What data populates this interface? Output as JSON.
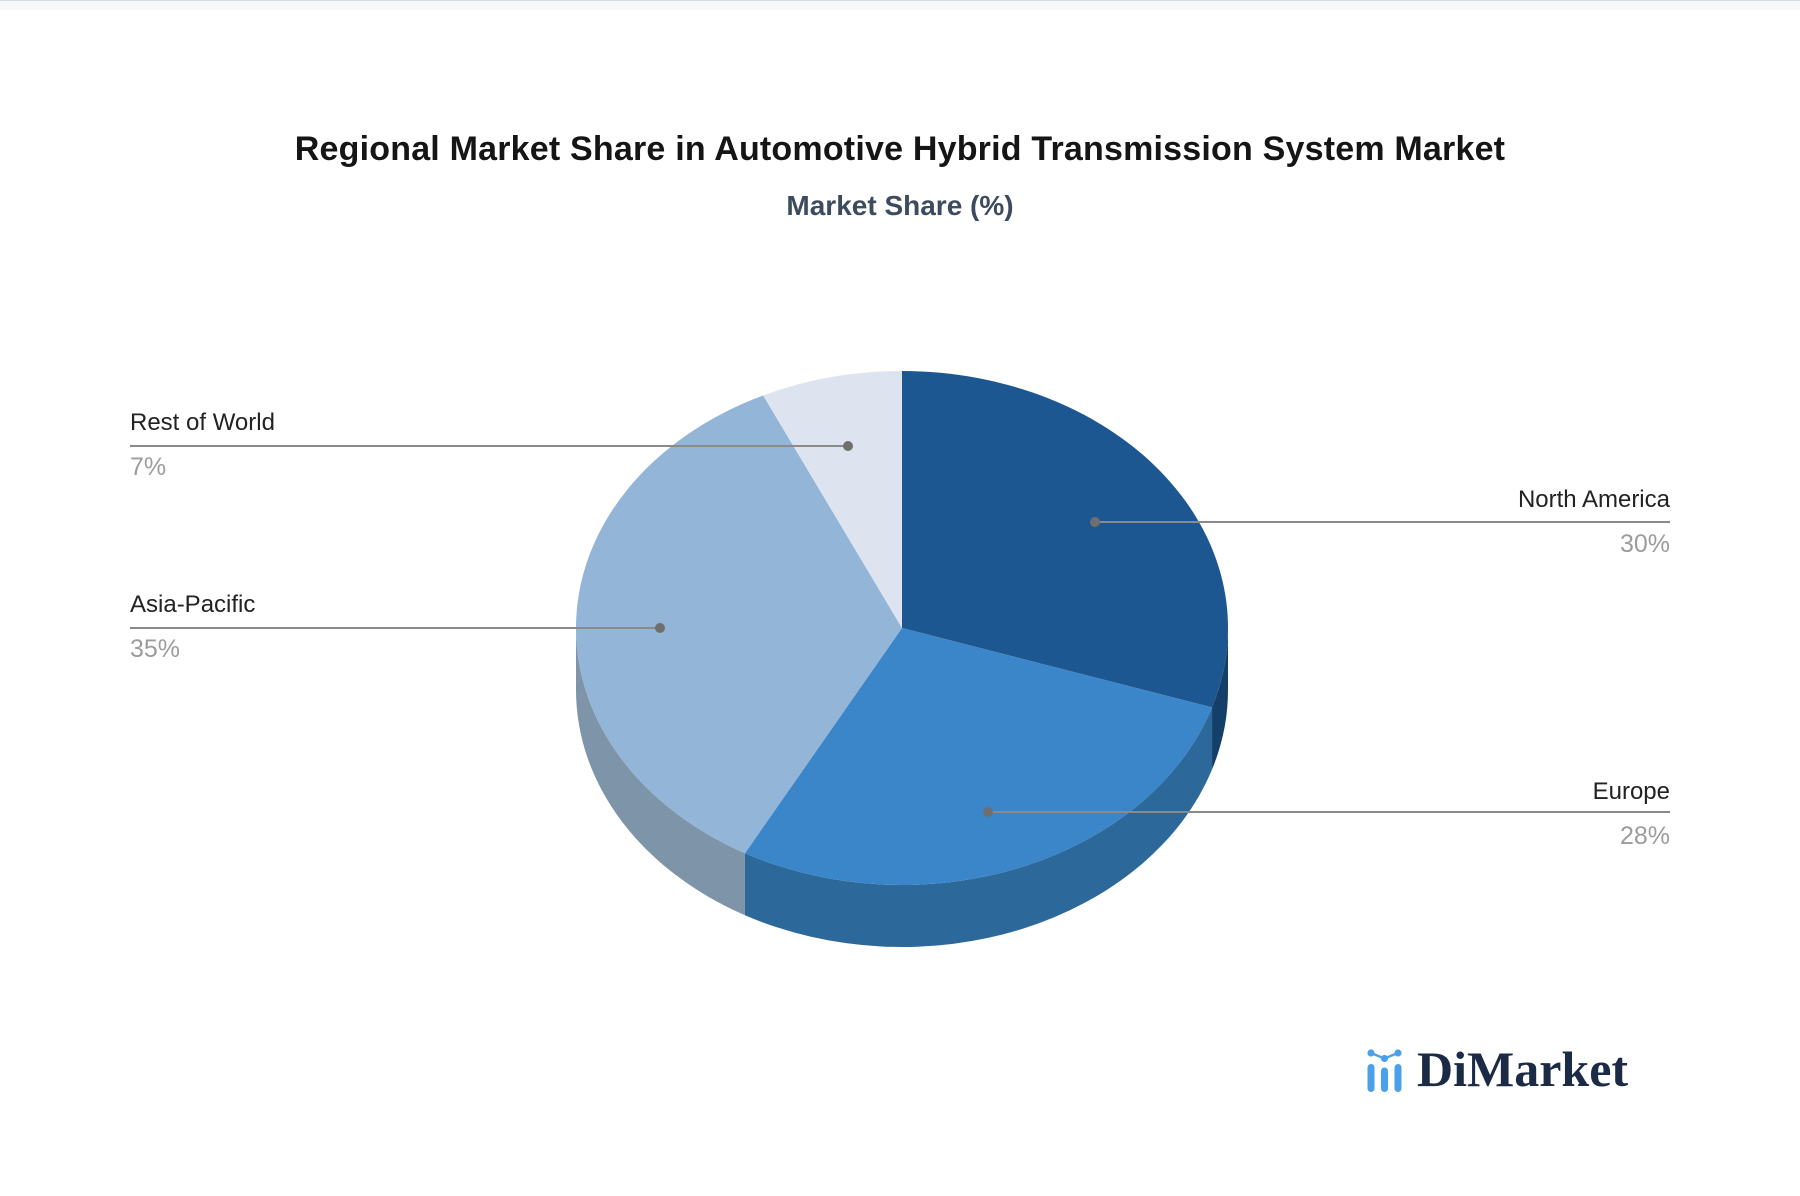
{
  "page": {
    "background_color": "#ffffff",
    "top_strip_color": "#f7f8f9"
  },
  "header": {
    "title": "Regional Market Share in Automotive Hybrid Transmission System Market",
    "subtitle": "Market Share (%)",
    "title_color": "#151515",
    "subtitle_color": "#3C4B5E"
  },
  "chart_data": {
    "type": "pie",
    "style": "3d",
    "title": "Regional Market Share in Automotive Hybrid Transmission System Market",
    "subtitle": "Market Share (%)",
    "unit": "%",
    "start_angle_deg": 0,
    "direction": "clockwise",
    "legend_position": "none",
    "categories": [
      "North America",
      "Europe",
      "Asia-Pacific",
      "Rest of World"
    ],
    "values": [
      30,
      28,
      35,
      7
    ],
    "labels_display": [
      "30%",
      "28%",
      "35%",
      "7%"
    ],
    "colors": [
      "#1C5791",
      "#3B85C9",
      "#93B5D8",
      "#DDE4EF"
    ],
    "side_colors": [
      "#133F68",
      "#2D689B",
      "#7D94A9",
      "#BCC6D5"
    ],
    "leader_line_color": "#8A8A8A",
    "leader_dot_color": "#6F6F6F",
    "label_name_color": "#222222",
    "label_value_color": "#9C9C9C"
  },
  "brand": {
    "name": "DiMarket",
    "icon": "bar-line-chart-icon",
    "icon_color": "#4AA0E9",
    "text_color": "#1C2B45"
  }
}
